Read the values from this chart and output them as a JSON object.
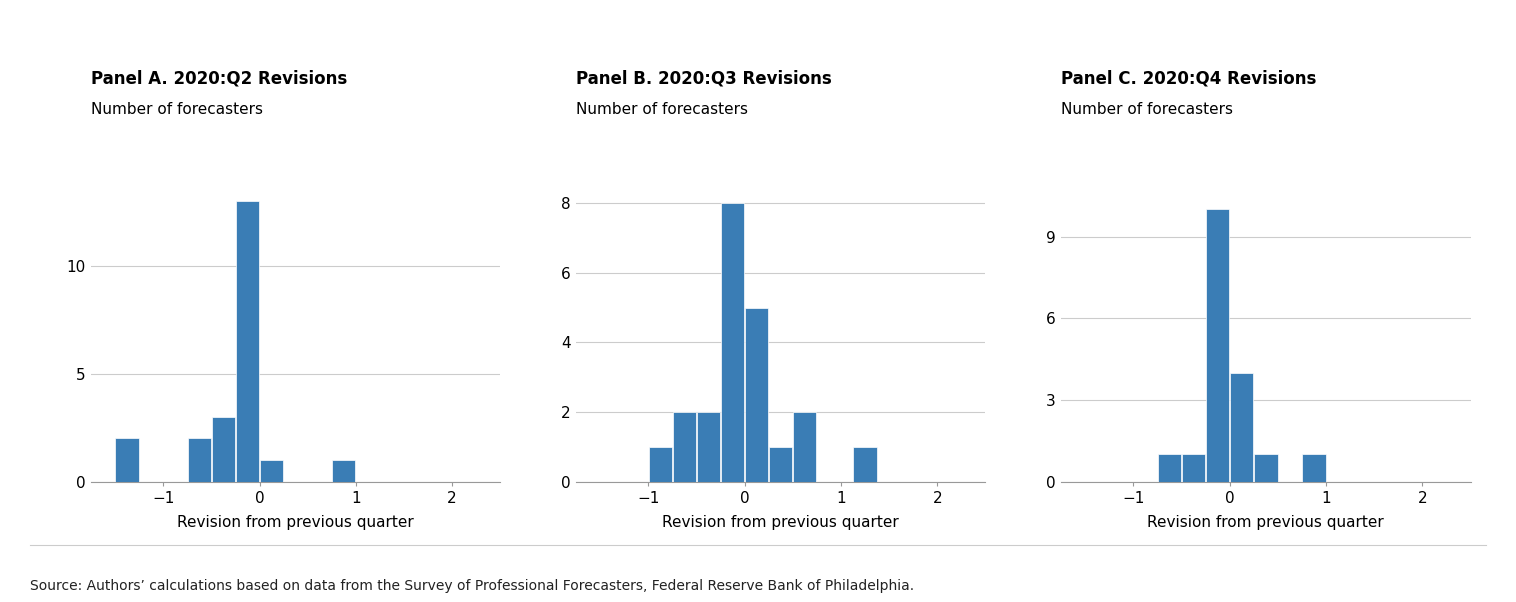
{
  "panels": [
    {
      "title": "Panel A. 2020:Q2 Revisions",
      "ylabel": "Number of forecasters",
      "xlabel": "Revision from previous quarter",
      "bar_color": "#3a7db5",
      "bar_data": [
        [
          -1.375,
          2
        ],
        [
          -0.625,
          2
        ],
        [
          -0.375,
          3
        ],
        [
          -0.125,
          13
        ],
        [
          0.125,
          1
        ],
        [
          0.875,
          1
        ]
      ],
      "bar_width": 0.25,
      "ylim": [
        0,
        14.5
      ],
      "yticks": [
        0,
        5,
        10
      ],
      "xlim": [
        -1.75,
        2.5
      ],
      "xticks": [
        -1,
        0,
        1,
        2
      ]
    },
    {
      "title": "Panel B. 2020:Q3 Revisions",
      "ylabel": "Number of forecasters",
      "xlabel": "Revision from previous quarter",
      "bar_color": "#3a7db5",
      "bar_data": [
        [
          -0.875,
          1
        ],
        [
          -0.625,
          2
        ],
        [
          -0.375,
          2
        ],
        [
          -0.125,
          8
        ],
        [
          0.125,
          5
        ],
        [
          0.375,
          1
        ],
        [
          0.625,
          2
        ],
        [
          1.25,
          1
        ]
      ],
      "bar_width": 0.25,
      "ylim": [
        0,
        9.0
      ],
      "yticks": [
        0,
        2,
        4,
        6,
        8
      ],
      "xlim": [
        -1.75,
        2.5
      ],
      "xticks": [
        -1,
        0,
        1,
        2
      ]
    },
    {
      "title": "Panel C. 2020:Q4 Revisions",
      "ylabel": "Number of forecasters",
      "xlabel": "Revision from previous quarter",
      "bar_color": "#3a7db5",
      "bar_data": [
        [
          -0.625,
          1
        ],
        [
          -0.375,
          1
        ],
        [
          -0.125,
          10
        ],
        [
          0.125,
          4
        ],
        [
          0.375,
          1
        ],
        [
          0.875,
          1
        ]
      ],
      "bar_width": 0.25,
      "ylim": [
        0,
        11.5
      ],
      "yticks": [
        0,
        3,
        6,
        9
      ],
      "xlim": [
        -1.75,
        2.5
      ],
      "xticks": [
        -1,
        0,
        1,
        2
      ]
    }
  ],
  "source_text": "Source: Authors’ calculations based on data from the Survey of Professional Forecasters, Federal Reserve Bank of Philadelphia.",
  "bg_color": "#ffffff",
  "grid_color": "#cccccc",
  "title_fontsize": 12,
  "label_fontsize": 11,
  "tick_fontsize": 11,
  "source_fontsize": 10
}
